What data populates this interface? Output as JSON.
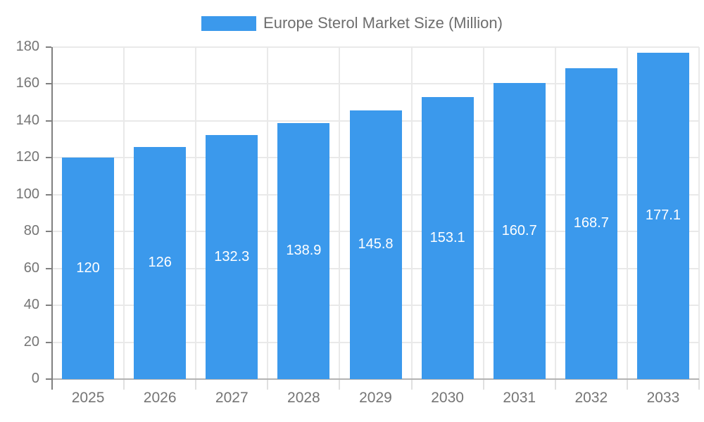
{
  "legend": {
    "label": "Europe Sterol Market Size (Million)"
  },
  "colors": {
    "bar": "#3b99ec",
    "grid": "#e9e9e9",
    "axis": "#808080",
    "baseline": "#b3b3b3",
    "tick_light": "#e0e0e0",
    "axis_text": "#757575",
    "legend_text": "#6e6e6e",
    "bar_label_text": "#ffffff",
    "background": "#ffffff"
  },
  "chart_data": {
    "type": "bar",
    "title": "Europe Sterol Market Size (Million)",
    "categories": [
      "2025",
      "2026",
      "2027",
      "2028",
      "2029",
      "2030",
      "2031",
      "2032",
      "2033"
    ],
    "series": [
      {
        "name": "Europe Sterol Market Size (Million)",
        "values": [
          120,
          126,
          132.3,
          138.9,
          145.8,
          153.1,
          160.7,
          168.7,
          177.1
        ]
      }
    ],
    "value_labels": [
      "120",
      "126",
      "132.3",
      "138.9",
      "145.8",
      "153.1",
      "160.7",
      "168.7",
      "177.1"
    ],
    "xlabel": "",
    "ylabel": "",
    "ylim": [
      0,
      180
    ],
    "ytick_step": 20,
    "grid": true,
    "legend_position": "top",
    "value_label_position": "inside-center"
  }
}
